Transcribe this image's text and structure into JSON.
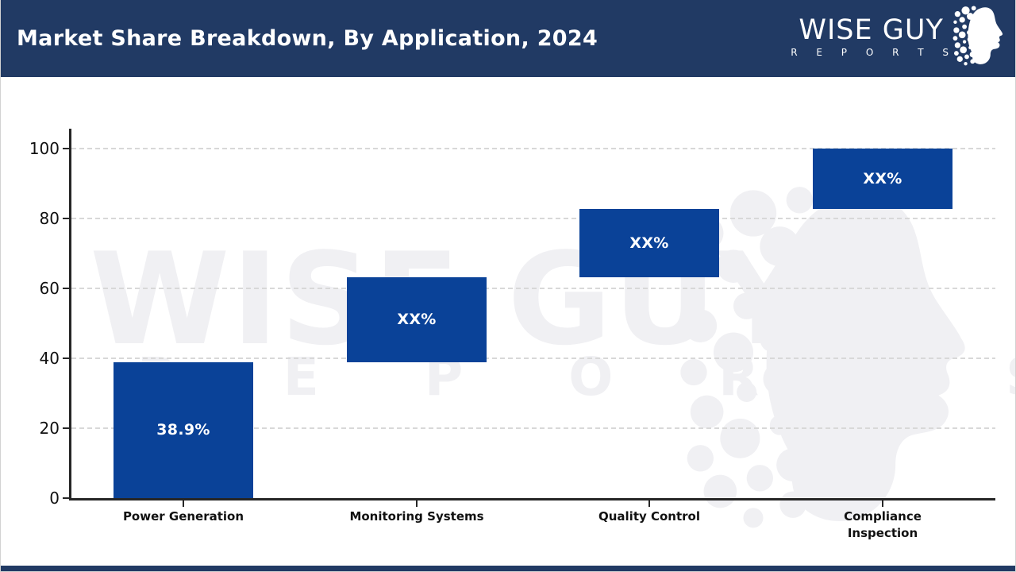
{
  "page": {
    "background": "#ffffff",
    "accent_navy": "#213a64"
  },
  "header": {
    "title": "Market Share Breakdown, By Application, 2024",
    "logo": {
      "line1": "WISE GUY",
      "line2": "R E P O R T S"
    }
  },
  "watermark": {
    "line1": "WISE GUY",
    "line2": "R E P O R T S"
  },
  "chart_data": {
    "type": "bar",
    "subtype": "floating-segment breakdown (waterfall style)",
    "title": "Market Share Breakdown, By Application, 2024",
    "categories": [
      "Power Generation",
      "Monitoring Systems",
      "Quality Control",
      "Compliance\nInspection"
    ],
    "segments": [
      {
        "category": "Power Generation",
        "start": 0,
        "end": 38.9,
        "label": "38.9%"
      },
      {
        "category": "Monitoring Systems",
        "start": 38.9,
        "end": 63.2,
        "label": "XX%"
      },
      {
        "category": "Quality Control",
        "start": 63.2,
        "end": 82.7,
        "label": "XX%"
      },
      {
        "category": "Compliance Inspection",
        "start": 82.7,
        "end": 100,
        "label": "XX%"
      }
    ],
    "xlabel": "",
    "ylabel": "",
    "ylim": [
      0,
      105
    ],
    "yticks": [
      0,
      20,
      40,
      60,
      80,
      100
    ],
    "grid": "horizontal dashed",
    "legend": "none",
    "bar_color": "#0a4298",
    "value_label_color": "#ffffff"
  }
}
